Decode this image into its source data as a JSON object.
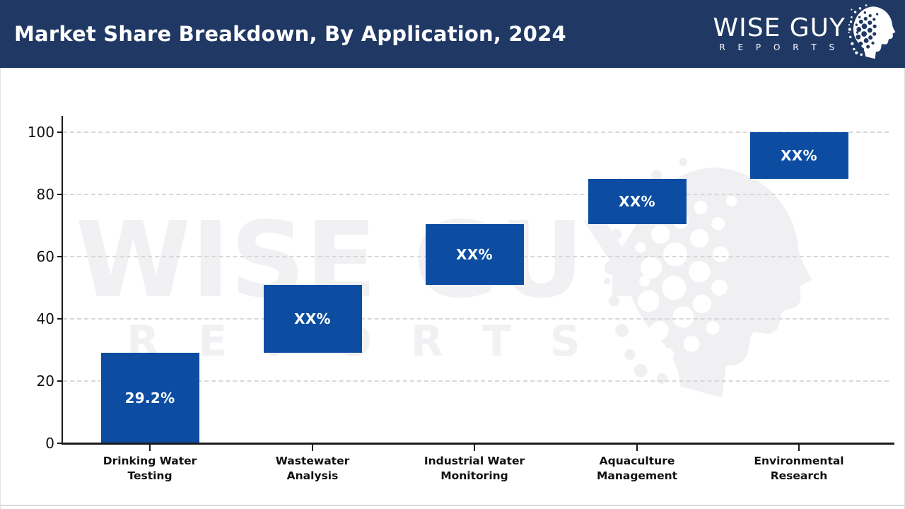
{
  "header": {
    "title": "Market Share Breakdown, By Application, 2024",
    "logo": {
      "name": "WISE GUY",
      "tagline": "R E P O R T S"
    }
  },
  "watermark": {
    "name": "WISE GUY",
    "tagline": "R E P O R T S"
  },
  "chart_data": {
    "type": "bar",
    "subtype": "waterfall",
    "title": "Market Share Breakdown, By Application, 2024",
    "categories": [
      "Drinking Water\nTesting",
      "Wastewater\nAnalysis",
      "Industrial Water\nMonitoring",
      "Aquaculture\nManagement",
      "Environmental\nResearch"
    ],
    "segments": [
      {
        "category": "Drinking Water Testing",
        "label": "29.2%",
        "start": 0,
        "end": 29.2
      },
      {
        "category": "Wastewater Analysis",
        "label": "XX%",
        "start": 29.2,
        "end": 51
      },
      {
        "category": "Industrial Water Monitoring",
        "label": "XX%",
        "start": 51,
        "end": 70.5
      },
      {
        "category": "Aquaculture Management",
        "label": "XX%",
        "start": 70.5,
        "end": 85
      },
      {
        "category": "Environmental Research",
        "label": "XX%",
        "start": 85,
        "end": 100
      }
    ],
    "yticks": [
      0,
      20,
      40,
      60,
      80,
      100
    ],
    "ylim": [
      0,
      100
    ],
    "xlabel": "",
    "ylabel": "",
    "legend": null,
    "grid": "horizontal-dashed",
    "colors": {
      "bar": "#0c4da2",
      "bar_label": "#ffffff",
      "grid": "#d8d8d8",
      "axis": "#1a1a1a",
      "tick_label": "#111111"
    }
  },
  "colors": {
    "header_bg": "#203864",
    "page_bg": "#ffffff",
    "watermark": "#f1f1f4",
    "border": "#d9d9d9"
  }
}
